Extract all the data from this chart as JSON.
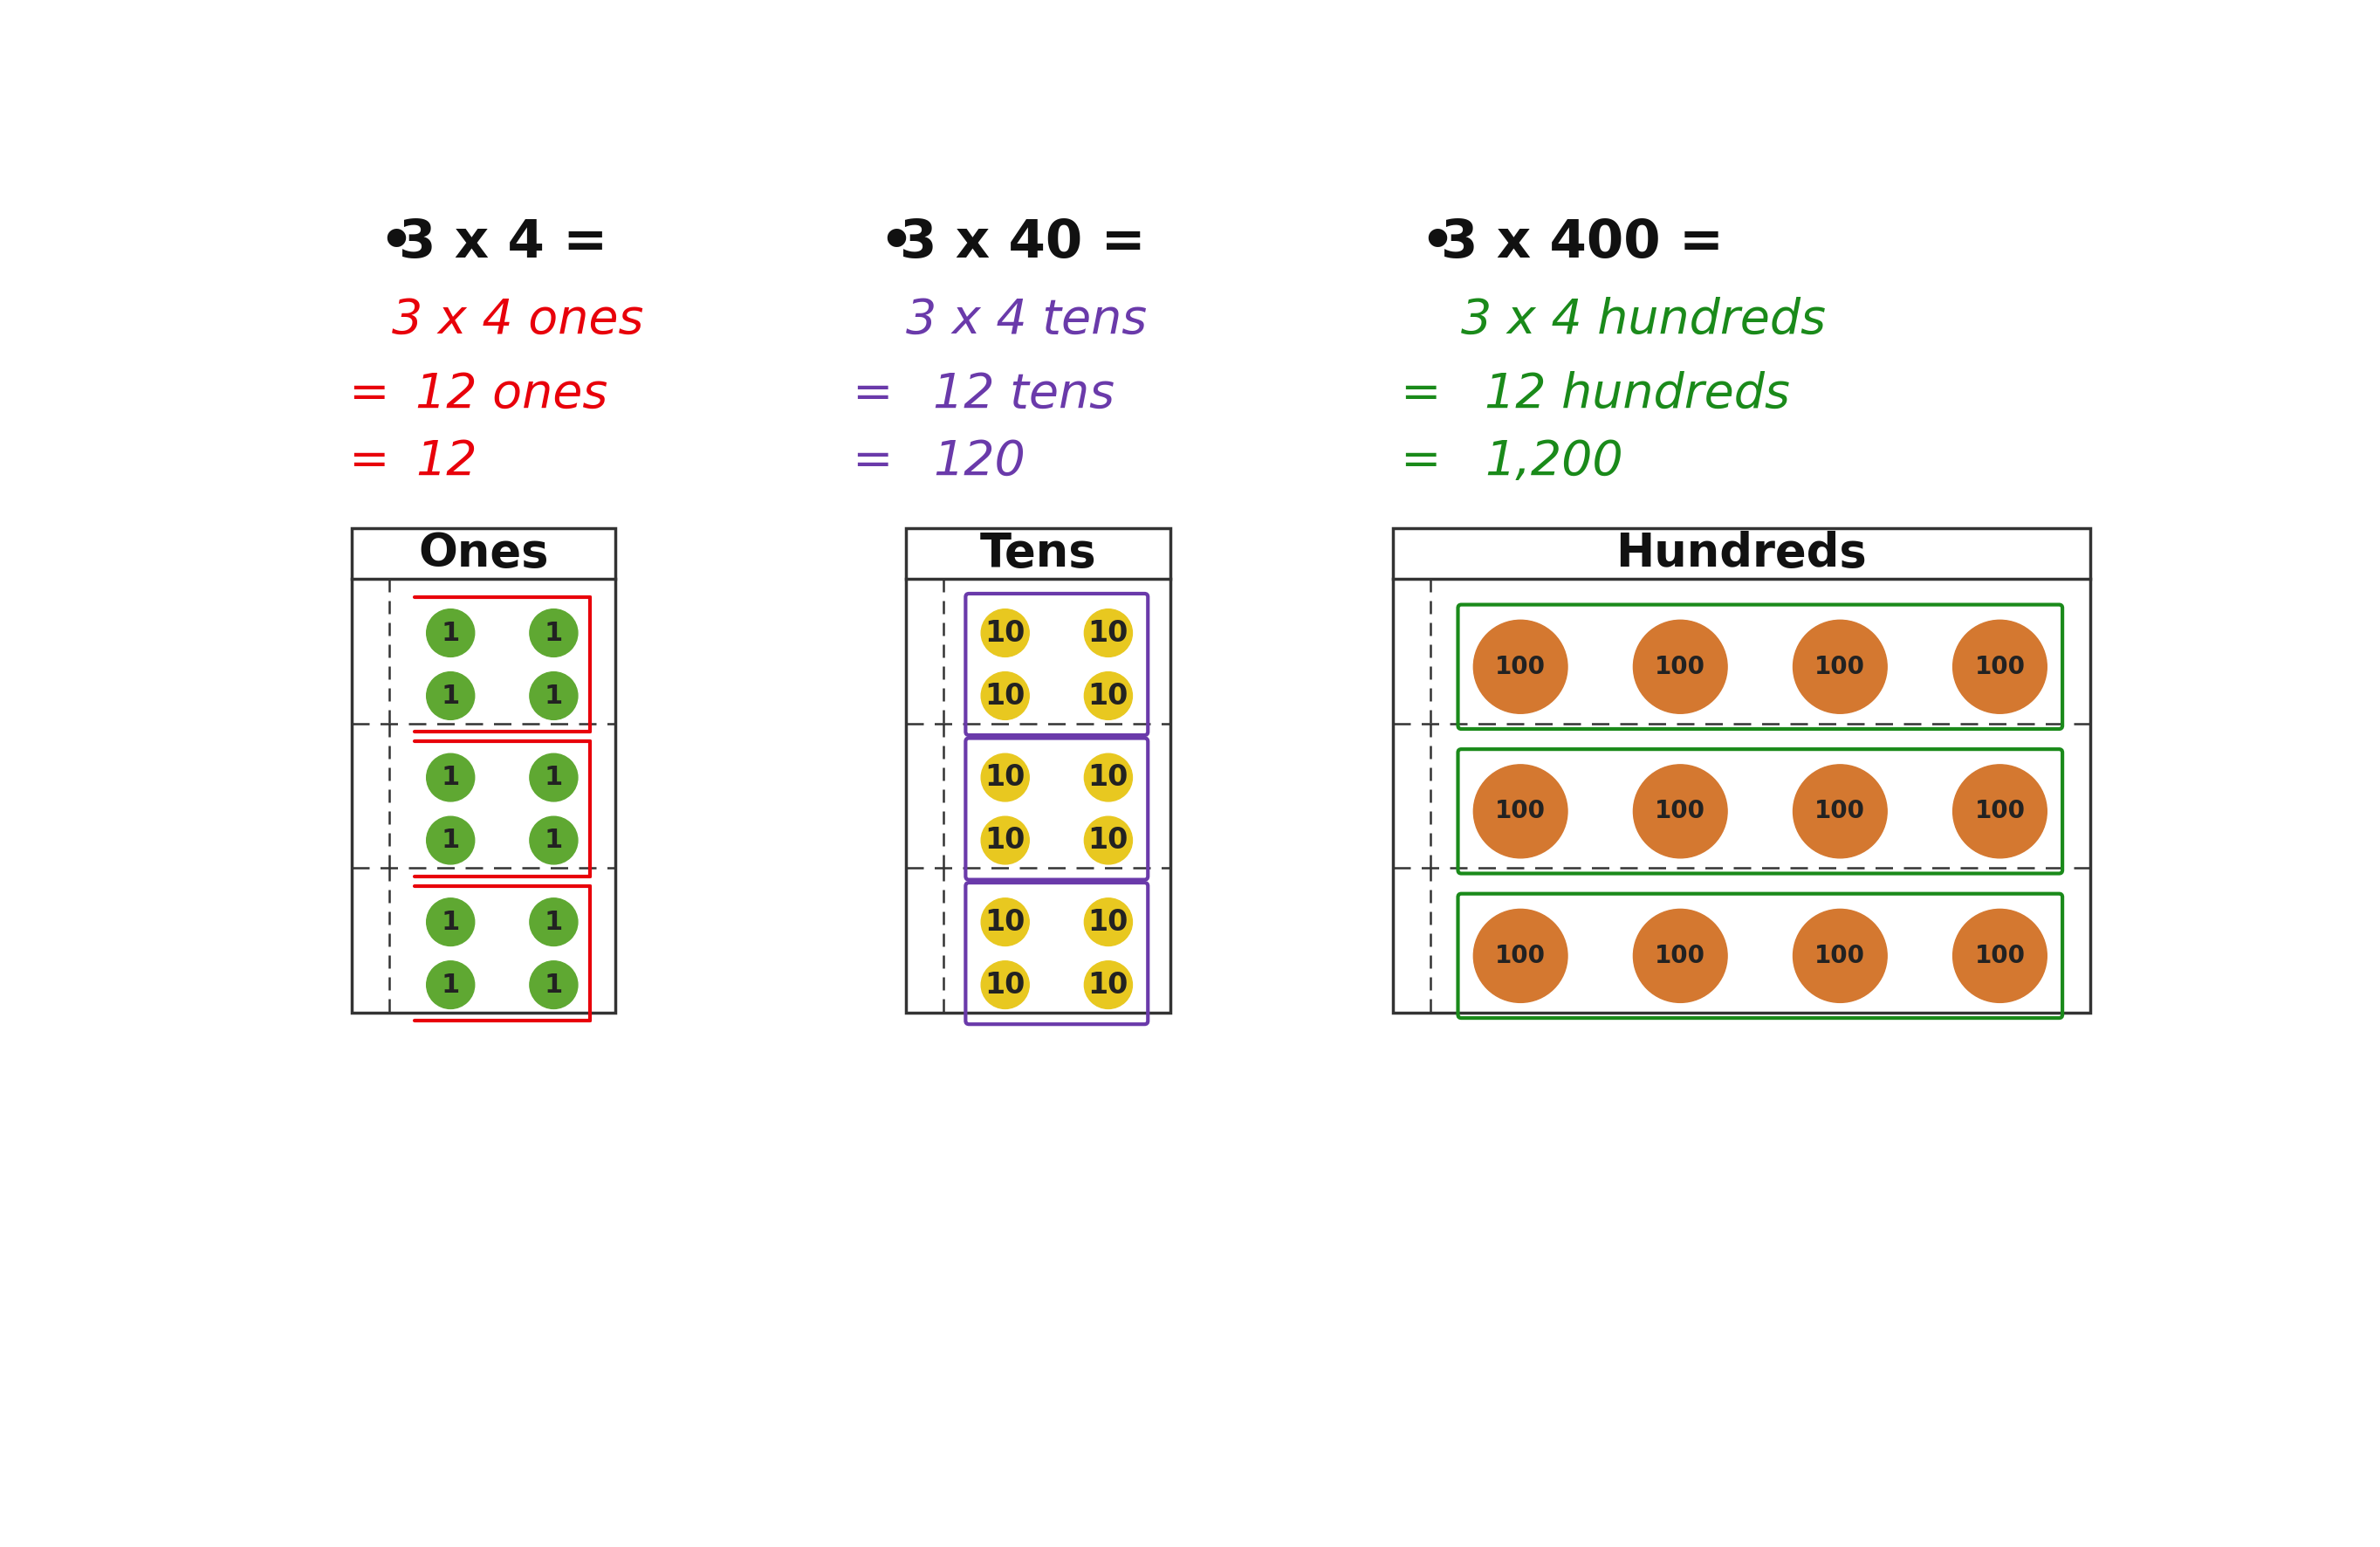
{
  "bg_color": "#ffffff",
  "title1": "3 x 4 =",
  "title2": "3 x 40 =",
  "title3": "3 x 400 =",
  "lines_col1": [
    "3 x 4 ones",
    "= 12 ones",
    "= 12"
  ],
  "lines_col2": [
    "3 x 4 tens",
    "= 12 tens",
    "= 120"
  ],
  "lines_col3": [
    "3 x 4 hundreds",
    "= 12 hundreds",
    "= 1,200"
  ],
  "hand_color1": "#e8000a",
  "hand_color2": "#6a3aaa",
  "hand_color3": "#1a8a1a",
  "ones_circle_color": "#5fa832",
  "tens_circle_color": "#e8c820",
  "hundreds_circle_color": "#d47830",
  "ones_bracket_color": "#e8000a",
  "tens_bracket_color": "#6a3aaa",
  "hundreds_bracket_color": "#1a8a1a"
}
